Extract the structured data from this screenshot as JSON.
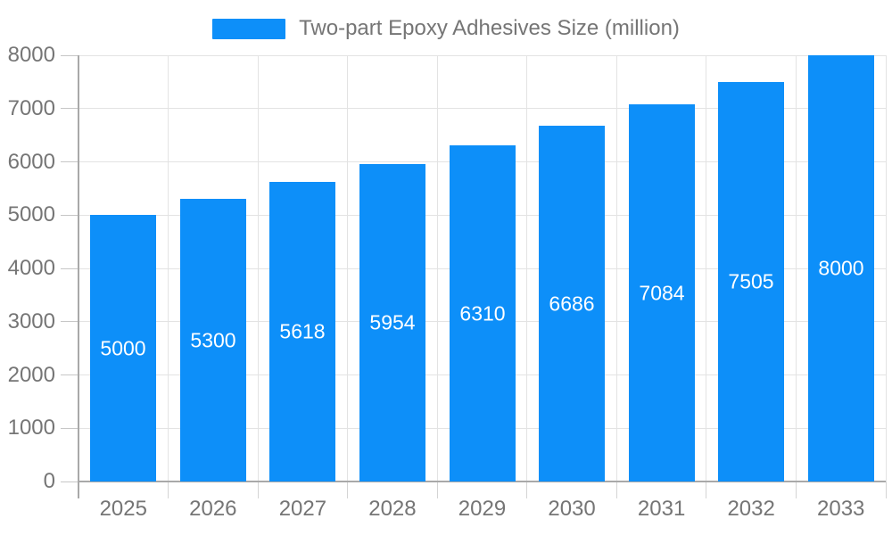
{
  "legend": {
    "label": "Two-part Epoxy Adhesives Size (million)"
  },
  "chart_data": {
    "type": "bar",
    "title": "Two-part Epoxy Adhesives Size (million)",
    "categories": [
      "2025",
      "2026",
      "2027",
      "2028",
      "2029",
      "2030",
      "2031",
      "2032",
      "2033"
    ],
    "values": [
      5000,
      5300,
      5618,
      5954,
      6310,
      6686,
      7084,
      7505,
      8000
    ],
    "xlabel": "",
    "ylabel": "",
    "ylim": [
      0,
      8000
    ],
    "ytick_step": 1000,
    "ytick_labels": [
      "0",
      "1000",
      "2000",
      "3000",
      "4000",
      "5000",
      "6000",
      "7000",
      "8000"
    ],
    "grid": true,
    "legend_position": "top-center",
    "value_labels": "inside-center-white",
    "colors": {
      "bar": "#0d8ff9",
      "value_label": "#ffffff",
      "axis_text": "#757575",
      "legend_text": "#757575",
      "gridline": "#e3e3e3",
      "axis_line": "#a9a9a9",
      "background": "#ffffff"
    }
  }
}
